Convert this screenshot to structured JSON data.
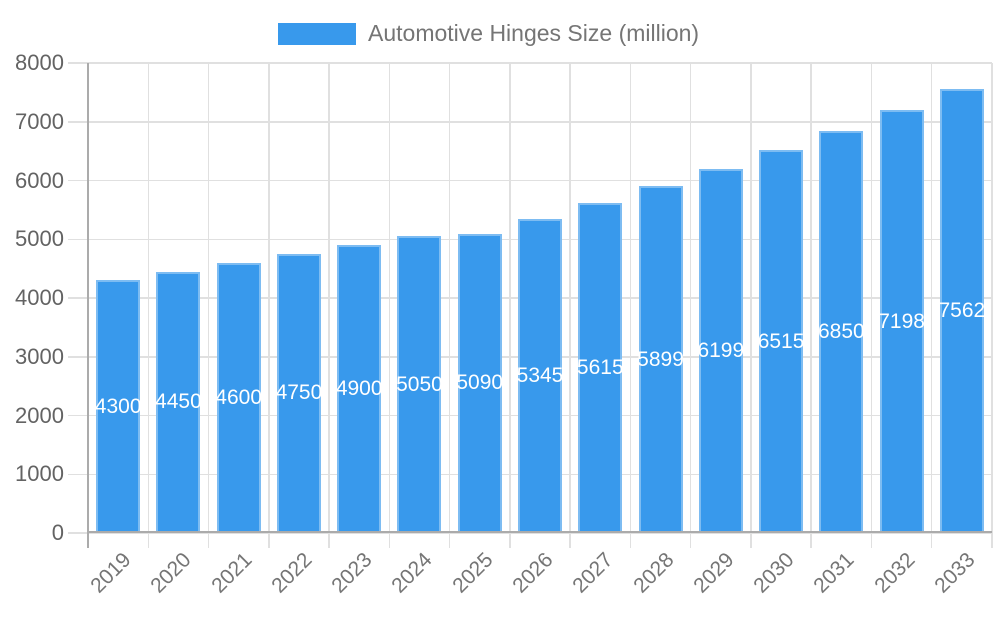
{
  "chart_data": {
    "type": "bar",
    "title": "Automotive Hinges Size (million)",
    "legend_label": "Automotive Hinges Size (million)",
    "legend_position": "top",
    "categories": [
      "2019",
      "2020",
      "2021",
      "2022",
      "2023",
      "2024",
      "2025",
      "2026",
      "2027",
      "2028",
      "2029",
      "2030",
      "2031",
      "2032",
      "2033"
    ],
    "values": [
      4300,
      4450,
      4600,
      4750,
      4900,
      5050,
      5090,
      5345,
      5615,
      5899,
      6199,
      6515,
      6850,
      7198,
      7562
    ],
    "xlabel": "",
    "ylabel": "",
    "ylim": [
      0,
      8000
    ],
    "yticks": [
      0,
      1000,
      2000,
      3000,
      4000,
      5000,
      6000,
      7000,
      8000
    ],
    "grid": true,
    "bar_color": "#3899EC",
    "bar_edge_color": "rgba(255,255,255,0.35)",
    "value_label_color": "#ffffff",
    "grid_color": "#e0e0e0",
    "axis_line_color": "#ababab",
    "ytick_color": "#636363",
    "xtick_color": "#757575",
    "legend_text_color": "#757575"
  }
}
